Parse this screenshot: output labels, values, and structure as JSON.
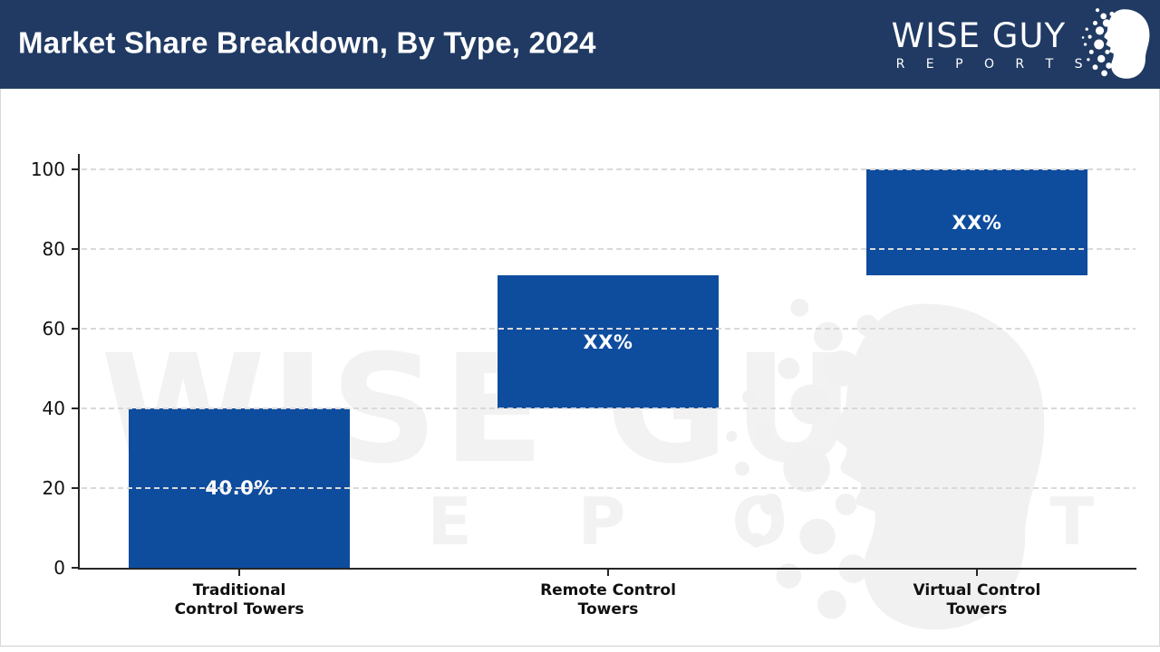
{
  "header": {
    "title": "Market Share Breakdown, By Type, 2024",
    "logo": {
      "brand_line1": "WISE GUY",
      "brand_line2": "R E P O R T S"
    }
  },
  "watermark": {
    "line1": "WISE GUY",
    "line2": "R E P O R T S"
  },
  "chart_data": {
    "type": "bar",
    "variant": "waterfall",
    "title": "Market Share Breakdown, By Type, 2024",
    "categories": [
      "Traditional\nControl Towers",
      "Remote Control\nTowers",
      "Virtual Control\nTowers"
    ],
    "bars": [
      {
        "category": "Traditional Control Towers",
        "start": 0,
        "end": 40,
        "label": "40.0%"
      },
      {
        "category": "Remote Control Towers",
        "start": 40,
        "end": 73.3,
        "label": "XX%"
      },
      {
        "category": "Virtual Control Towers",
        "start": 73.3,
        "end": 100,
        "label": "XX%"
      }
    ],
    "ylim": [
      0,
      100
    ],
    "yticks": [
      0,
      20,
      40,
      60,
      80,
      100
    ],
    "grid": {
      "horizontal": true,
      "style": "dashed"
    },
    "colors": {
      "bar": "#0e4c9e",
      "bar_label": "#ffffff",
      "header_bg": "#203a63",
      "grid": "#d9d9d9",
      "axis": "#262626",
      "watermark": "#f2f2f2"
    }
  }
}
